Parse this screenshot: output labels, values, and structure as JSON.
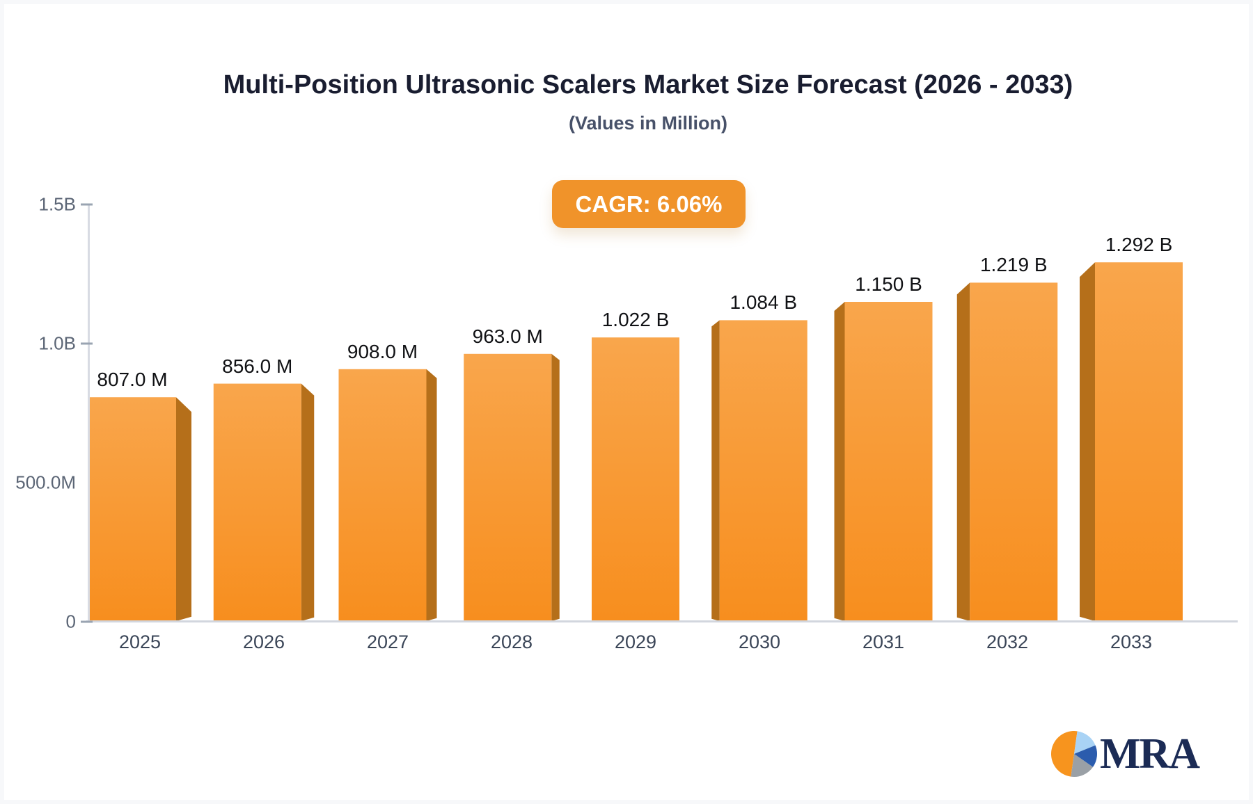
{
  "header": {
    "title": "Multi-Position Ultrasonic Scalers Market Size Forecast (2026 - 2033)",
    "subtitle": "(Values in Million)"
  },
  "cagr_badge": {
    "label": "CAGR: 6.06%",
    "background": "#f0932a",
    "text_color": "#ffffff"
  },
  "chart_data": {
    "type": "bar",
    "title": "Multi-Position Ultrasonic Scalers Market Size Forecast (2026 - 2033)",
    "subtitle": "(Values in Million)",
    "cagr": "6.06%",
    "categories": [
      "2025",
      "2026",
      "2027",
      "2028",
      "2029",
      "2030",
      "2031",
      "2032",
      "2033"
    ],
    "values_in_millions": [
      807,
      856,
      908,
      963,
      1022,
      1084,
      1150,
      1219,
      1292
    ],
    "value_labels": [
      "807.0 M",
      "856.0 M",
      "908.0 M",
      "963.0 M",
      "1.022 B",
      "1.084 B",
      "1.150 B",
      "1.219 B",
      "1.292 B"
    ],
    "ylim": [
      0,
      1500
    ],
    "y_ticks": [
      {
        "label": "1.5B",
        "value": 1500,
        "dash": true
      },
      {
        "label": "1.0B",
        "value": 1000,
        "dash": true
      },
      {
        "label": "500.0M",
        "value": 500,
        "dash": false
      },
      {
        "label": "0",
        "value": 0,
        "dash": true
      }
    ],
    "grid": false,
    "legend": "none",
    "bar_color_top": "#f9a64c",
    "bar_color_bottom": "#f78e1e",
    "bar_side_color": "#b56f1a",
    "style": "3d-perspective, side faces point toward center bar"
  },
  "logo": {
    "text": "MRA",
    "pie_colors": {
      "orange": "#f7941e",
      "light_blue": "#a9d3f5",
      "dark_blue": "#2b5cad",
      "gray": "#9aa0a6"
    }
  }
}
